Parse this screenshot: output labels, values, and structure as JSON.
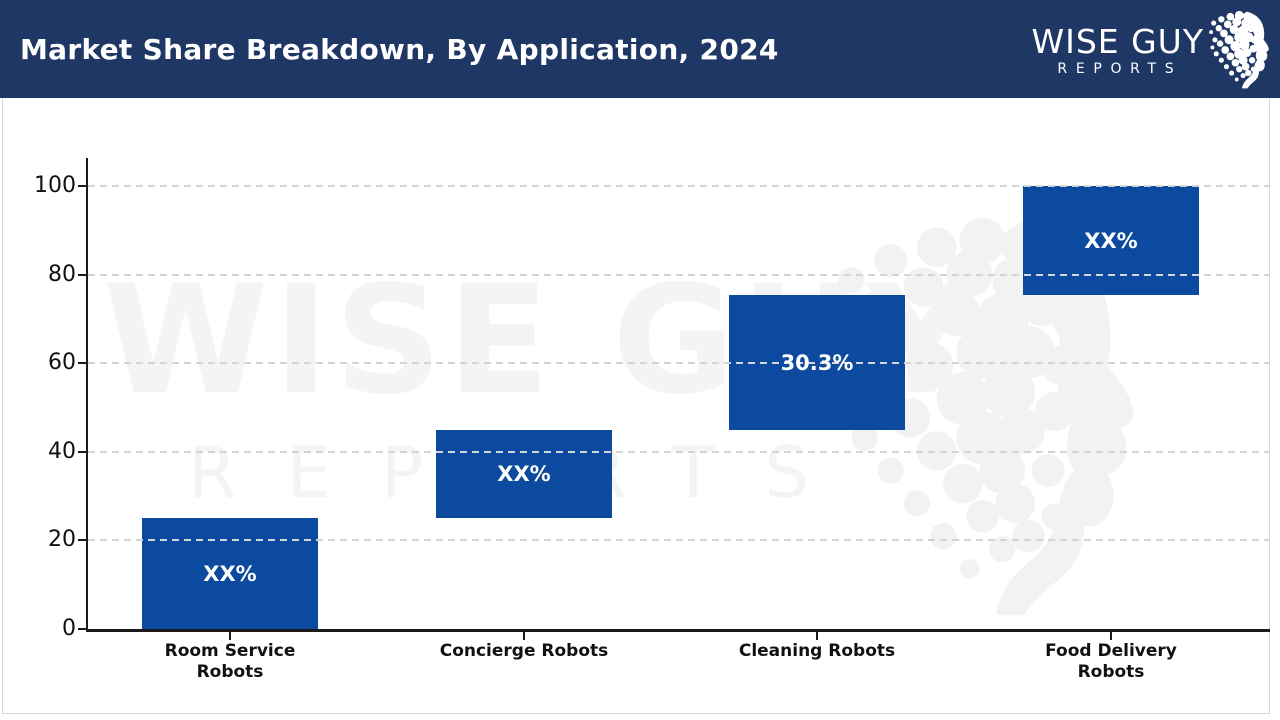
{
  "header": {
    "title": "Market Share Breakdown, By Application, 2024",
    "logo": {
      "line1": "WISE GUY",
      "line2": "REPORTS"
    }
  },
  "watermark": {
    "line1": "WISE GUY",
    "line2": "REPORTS"
  },
  "colors": {
    "header_bg": "#1f3765",
    "bar": "#0b4a9e",
    "bar_value_text": "#ffffff",
    "grid": "#d4d4d4",
    "axis": "#1a1a1a",
    "watermark": "#f4f4f4",
    "panel_border": "#d9d9d9"
  },
  "chart_data": {
    "type": "bar",
    "subtype": "floating-waterfall",
    "title": "Market Share Breakdown, By Application, 2024",
    "categories": [
      "Room Service Robots",
      "Concierge Robots",
      "Cleaning Robots",
      "Food Delivery Robots"
    ],
    "category_display": [
      "Room Service\nRobots",
      "Concierge Robots",
      "Cleaning Robots",
      "Food Delivery\nRobots"
    ],
    "segments": [
      {
        "category": "Room Service Robots",
        "start": 0,
        "end": 25,
        "label": "XX%"
      },
      {
        "category": "Concierge Robots",
        "start": 25,
        "end": 45,
        "label": "XX%"
      },
      {
        "category": "Cleaning Robots",
        "start": 45,
        "end": 75.3,
        "label": "30.3%"
      },
      {
        "category": "Food Delivery Robots",
        "start": 75.3,
        "end": 100,
        "label": "XX%"
      }
    ],
    "ylim": [
      0,
      100
    ],
    "yticks": [
      0,
      20,
      40,
      60,
      80,
      100
    ],
    "xlabel": "",
    "ylabel": "",
    "grid": "horizontal-dashed",
    "legend": "none"
  }
}
